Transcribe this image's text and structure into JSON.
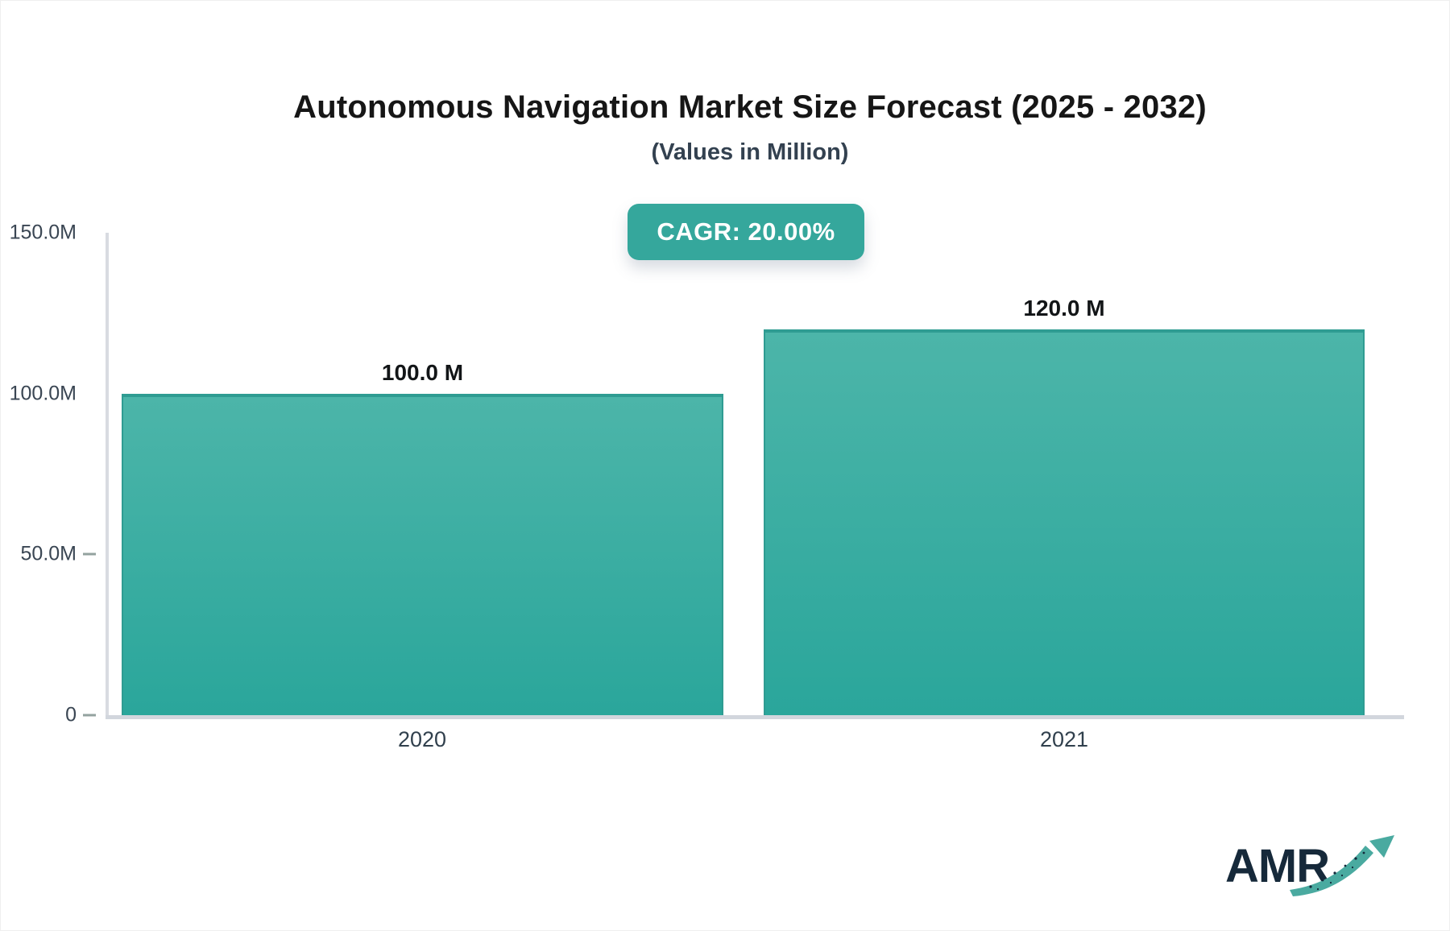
{
  "header": {
    "title": "Autonomous Navigation Market Size Forecast (2025 - 2032)",
    "subtitle": "(Values in Million)"
  },
  "cagr_badge": {
    "label": "CAGR: 20.00%",
    "background": "#35a79c",
    "text_color": "#ffffff"
  },
  "chart_data": {
    "type": "bar",
    "title": "Autonomous Navigation Market Size Forecast (2025 - 2032)",
    "subtitle": "(Values in Million)",
    "unit": "Million",
    "categories": [
      "2020",
      "2021"
    ],
    "values": [
      100.0,
      120.0
    ],
    "value_labels": [
      "100.0 M",
      "120.0 M"
    ],
    "ylim": [
      0,
      150
    ],
    "yticks": [
      {
        "label": "150.0M",
        "value": 150
      },
      {
        "label": "100.0M",
        "value": 100
      },
      {
        "label": "50.0M",
        "value": 50
      },
      {
        "label": "0",
        "value": 0
      }
    ],
    "grid": false,
    "legend": false,
    "bar_color_top": "#4cb5a9",
    "bar_color_bottom": "#2aa69b",
    "bar_border_color": "#2f9c92",
    "axis_color": "#d5d8de"
  },
  "logo": {
    "text": "AMR",
    "text_color": "#16293a",
    "arrow_color": "#4aaaa0"
  }
}
